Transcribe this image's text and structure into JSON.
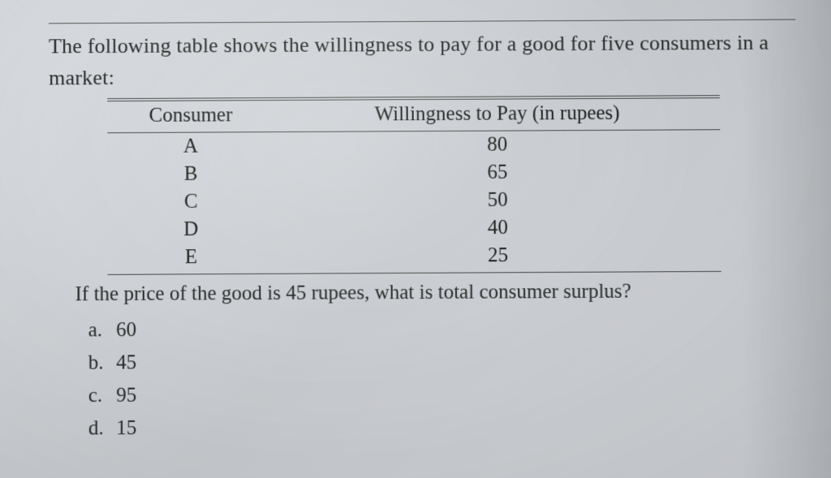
{
  "question": {
    "intro": "The following table shows the willingness to pay for a good for five consumers in a market:",
    "followup": "If the price of the good is 45 rupees, what is total consumer surplus?"
  },
  "table": {
    "columns": [
      "Consumer",
      "Willingness to Pay (in rupees)"
    ],
    "rows": [
      [
        "A",
        "80"
      ],
      [
        "B",
        "65"
      ],
      [
        "C",
        "50"
      ],
      [
        "D",
        "40"
      ],
      [
        "E",
        "25"
      ]
    ],
    "header_fontsize": 25,
    "cell_fontsize": 25,
    "rule_color": "#444444"
  },
  "options": [
    {
      "label": "a.",
      "value": "60"
    },
    {
      "label": "b.",
      "value": "45"
    },
    {
      "label": "c.",
      "value": "95"
    },
    {
      "label": "d.",
      "value": "15"
    }
  ],
  "style": {
    "background_color": "#d4d8dc",
    "text_color": "#2a2a2a",
    "font_family": "Times New Roman",
    "body_fontsize": 26
  }
}
